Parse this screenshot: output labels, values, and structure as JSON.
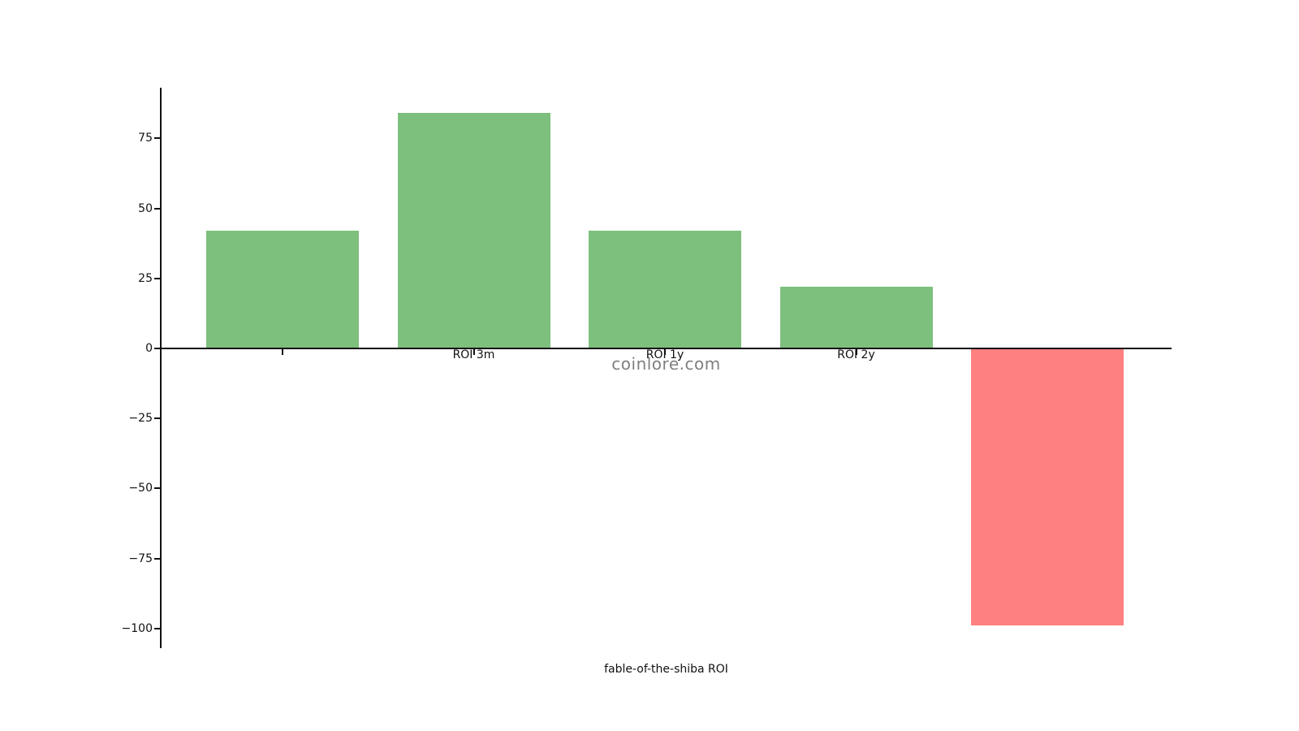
{
  "watermark": {
    "text": "coinlore.com",
    "color": "#7f7f7f"
  },
  "chart_data": {
    "type": "bar",
    "title": "fable-of-the-shiba ROI",
    "xlabel": "fable-of-the-shiba ROI",
    "ylabel": "",
    "categories": [
      "",
      "ROI 3m",
      "ROI 1y",
      "ROI 2y",
      ""
    ],
    "values": [
      42,
      84,
      42,
      22,
      -99
    ],
    "bar_colors": [
      "#7dc07d",
      "#7dc07d",
      "#7dc07d",
      "#7dc07d",
      "#ff8080"
    ],
    "positive_color": "#7dc07d",
    "negative_color": "#ff8080",
    "axis_color": "#111111",
    "yticks": [
      75,
      50,
      25,
      0,
      -25,
      -50,
      -75,
      -100
    ],
    "ytick_labels": [
      "75",
      "50",
      "25",
      "0",
      "−25",
      "−50",
      "−75",
      "−100"
    ],
    "x_tick_marks": [
      true,
      true,
      true,
      true,
      false
    ],
    "ylim": [
      -103,
      93
    ],
    "grid": false,
    "legend": null,
    "watermark": "coinlore.com"
  }
}
